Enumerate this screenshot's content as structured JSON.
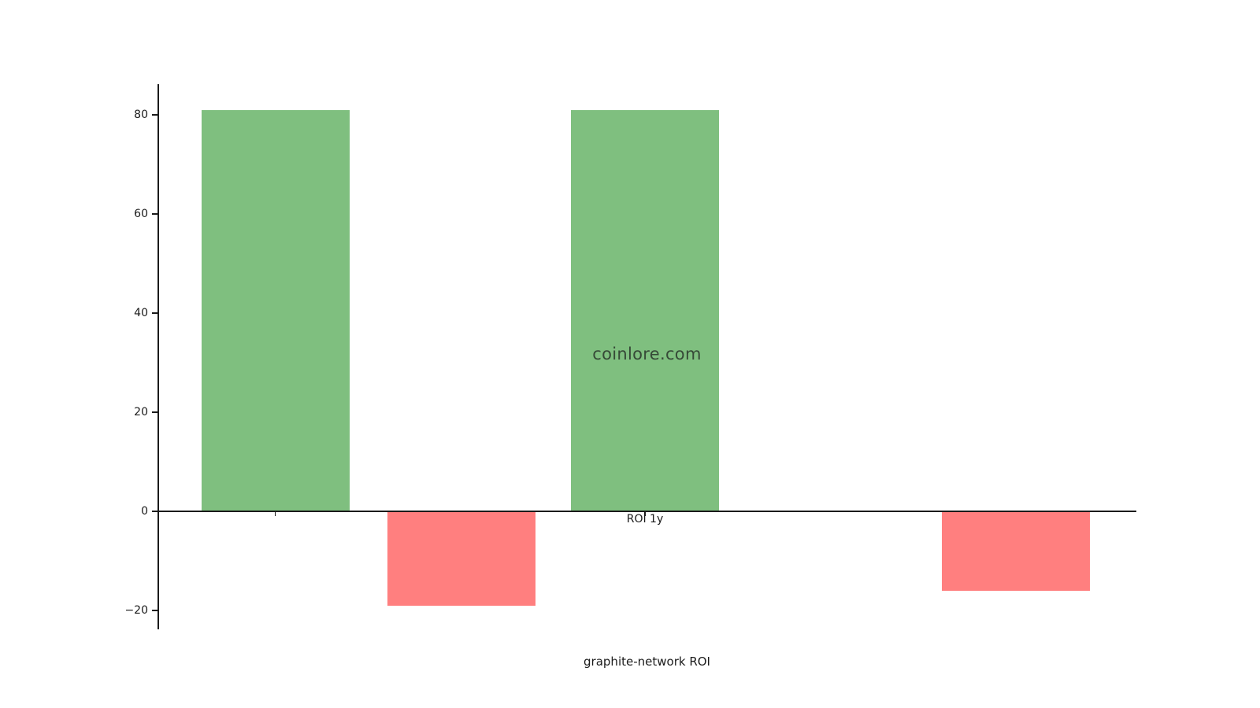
{
  "watermark": "coinlore.com",
  "chart_data": {
    "type": "bar",
    "title": "graphite-network ROI",
    "xlabel": "graphite-network ROI",
    "ylabel": "",
    "categories": [
      "",
      "",
      "ROI 1y",
      ""
    ],
    "values": [
      81,
      -19,
      81,
      -16
    ],
    "y_ticks": [
      80,
      60,
      40,
      20,
      0,
      -20
    ],
    "y_tick_labels": [
      "80",
      "60",
      "40",
      "20",
      "0",
      "−20"
    ],
    "x_tick_labels": [
      "",
      "ROI 1y"
    ],
    "ylim": [
      -24,
      86
    ],
    "grid": false,
    "legend": "none",
    "positive_color": "#7fbf7f",
    "negative_color": "#ff7f7f",
    "axis_color": "#1a1a1a",
    "text_color": "#1a1a1a"
  }
}
